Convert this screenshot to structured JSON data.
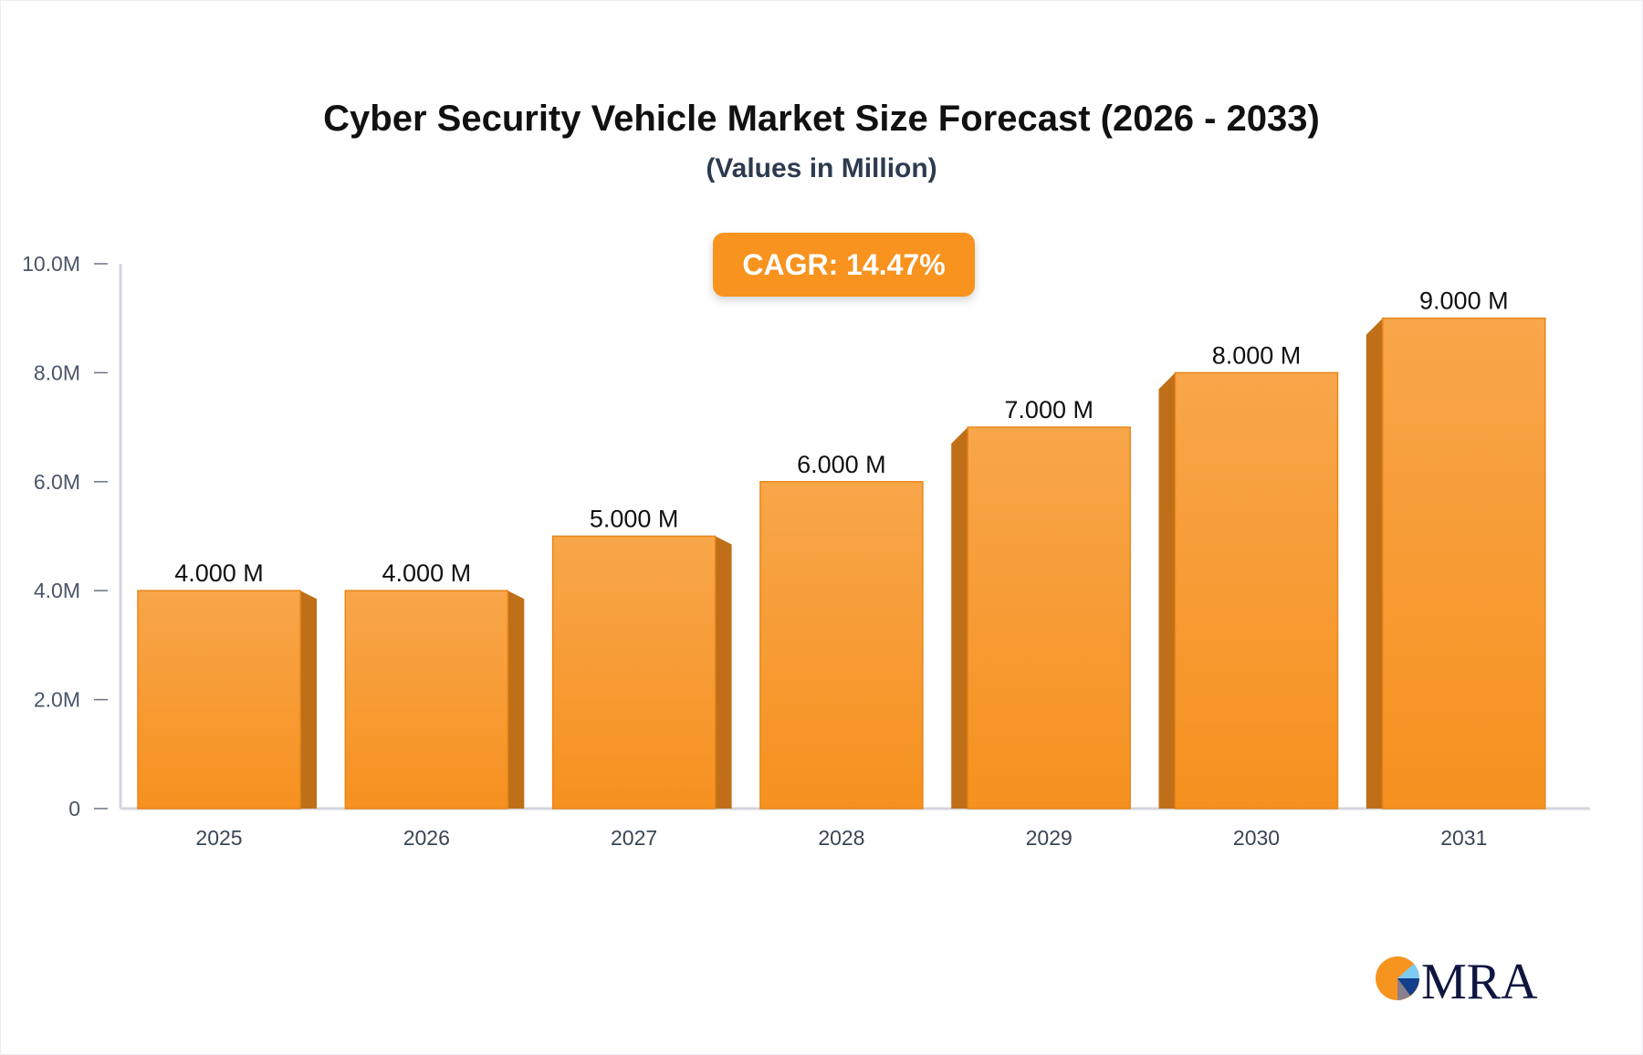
{
  "chart_data": {
    "type": "bar",
    "title": "Cyber Security Vehicle Market Size Forecast (2026 - 2033)",
    "subtitle": "(Values in Million)",
    "annotation": "CAGR: 14.47%",
    "categories": [
      "2025",
      "2026",
      "2027",
      "2028",
      "2029",
      "2030",
      "2031"
    ],
    "values": [
      4.0,
      4.0,
      5.0,
      6.0,
      7.0,
      8.0,
      9.0
    ],
    "data_labels": [
      "4.000 M",
      "4.000 M",
      "5.000 M",
      "6.000 M",
      "7.000 M",
      "8.000 M",
      "9.000 M"
    ],
    "y_ticks": [
      0,
      2,
      4,
      6,
      8,
      10
    ],
    "y_tick_labels": [
      "0",
      "2.0M",
      "4.0M",
      "6.0M",
      "8.0M",
      "10.0M"
    ],
    "ylim": [
      0,
      10
    ],
    "xlabel": "",
    "ylabel": "",
    "grid": false,
    "legend": "none",
    "bar_color": "#f7941f",
    "bar_side_color": "#bf6f18"
  },
  "logo": {
    "text": "MRA"
  }
}
